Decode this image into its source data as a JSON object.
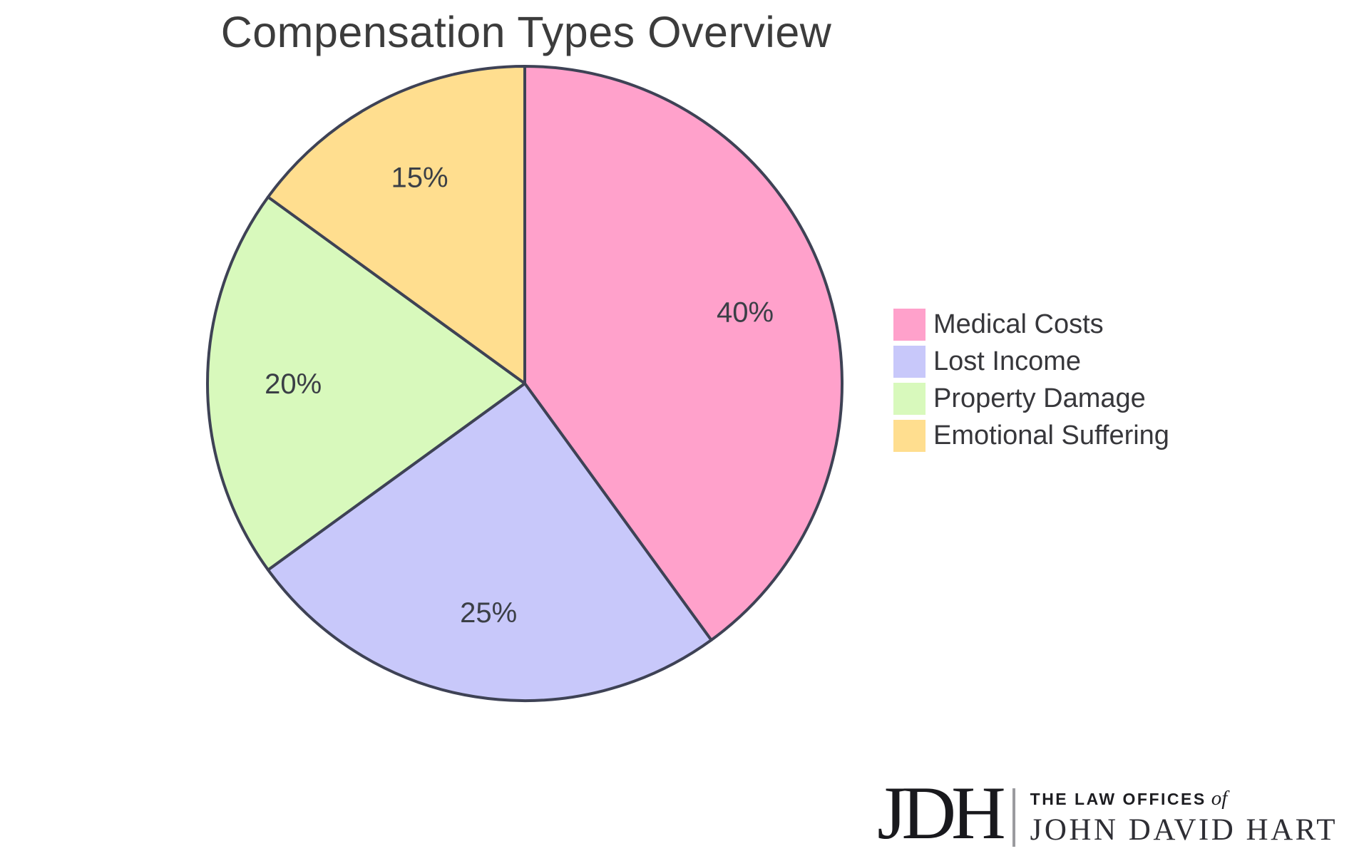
{
  "page": {
    "background_color": "#ffffff"
  },
  "chart_data": {
    "type": "pie",
    "title": "Compensation Types Overview",
    "labels": [
      "Medical Costs",
      "Lost Income",
      "Property Damage",
      "Emotional Suffering"
    ],
    "values": [
      40,
      25,
      20,
      15
    ],
    "slice_labels": [
      "40%",
      "25%",
      "20%",
      "15%"
    ],
    "colors": [
      "#FFA1CB",
      "#C8C8FA",
      "#D8F9BC",
      "#FFDE8F"
    ],
    "stroke_color": "#3E4255",
    "title_color": "#3C3C3C",
    "slice_label_color": "#3B3F46",
    "start_angle_deg": 0,
    "direction": "clockwise",
    "legend_position": "right",
    "grid": "off"
  },
  "branding": {
    "monogram": "JDH",
    "tagline_prefix": "THE LAW OFFICES",
    "tagline_of": "of",
    "firm_name": "JOHN DAVID HART"
  }
}
